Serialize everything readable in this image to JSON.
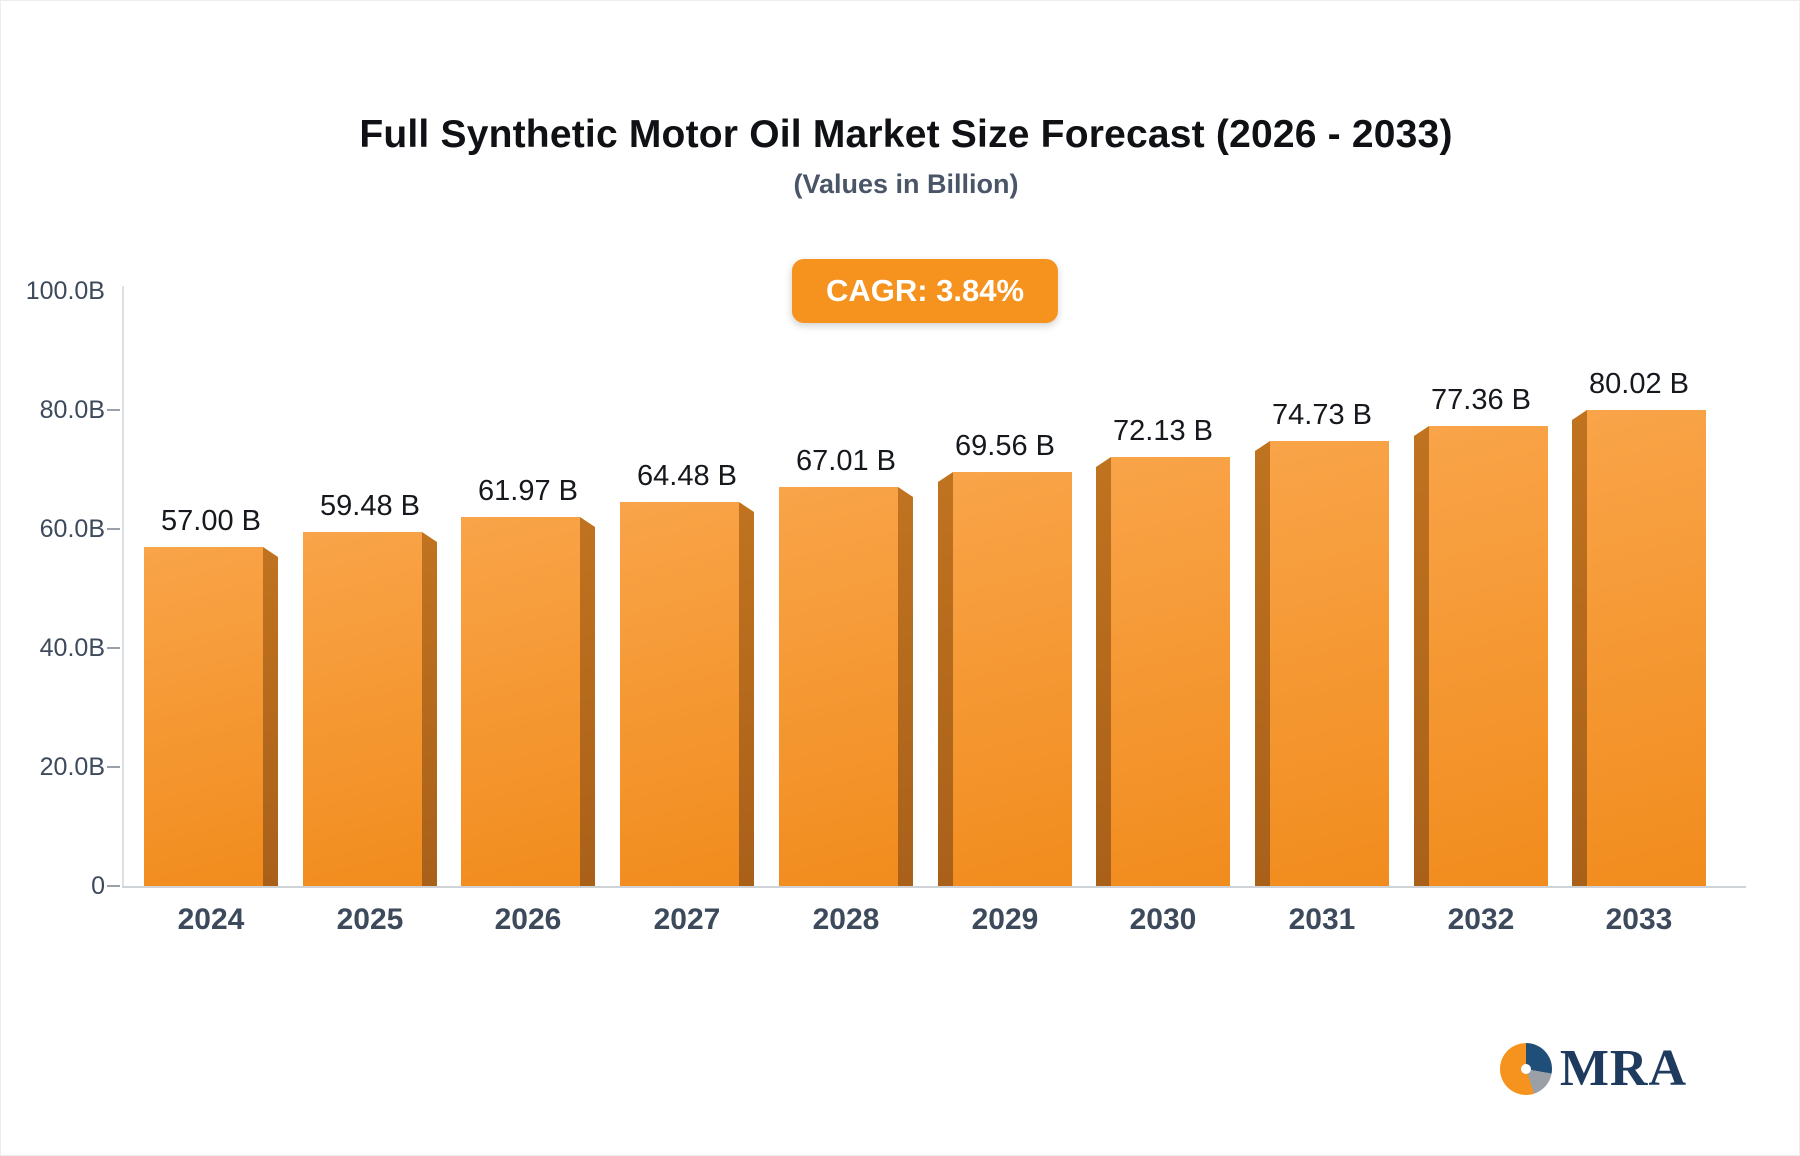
{
  "title": "Full Synthetic Motor Oil Market Size Forecast (2026 - 2033)",
  "subtitle": "(Values in Billion)",
  "cagr_badge": "CAGR: 3.84%",
  "logo_text": "MRA",
  "colors": {
    "accent": "#f6921e",
    "bar_top": "#f9a449",
    "bar_bottom": "#f18c1d",
    "bar_side": "#a96019",
    "title": "#0f1115",
    "subtitle": "#4a5568",
    "axis_text": "#3d4a5c",
    "value_text": "#15181d",
    "logo_navy": "#1e3a5f"
  },
  "chart_data": {
    "type": "bar",
    "title": "Full Synthetic Motor Oil Market Size Forecast (2026 - 2033)",
    "subtitle": "(Values in Billion)",
    "annotation": "CAGR: 3.84%",
    "categories": [
      "2024",
      "2025",
      "2026",
      "2027",
      "2028",
      "2029",
      "2030",
      "2031",
      "2032",
      "2033"
    ],
    "values": [
      57.0,
      59.48,
      61.97,
      64.48,
      67.01,
      69.56,
      72.13,
      74.73,
      77.36,
      80.02
    ],
    "labels": [
      "57.00 B",
      "59.48 B",
      "61.97 B",
      "64.48 B",
      "67.01 B",
      "69.56 B",
      "72.13 B",
      "74.73 B",
      "77.36 B",
      "80.02 B"
    ],
    "xlabel": "",
    "ylabel": "",
    "ylim": [
      0,
      100
    ],
    "yticks": [
      {
        "value": 0,
        "label": "0"
      },
      {
        "value": 20,
        "label": "20.0B"
      },
      {
        "value": 40,
        "label": "40.0B"
      },
      {
        "value": 60,
        "label": "60.0B"
      },
      {
        "value": 80,
        "label": "80.0B"
      },
      {
        "value": 100,
        "label": "100.0B"
      }
    ],
    "grid": false,
    "legend": false
  }
}
